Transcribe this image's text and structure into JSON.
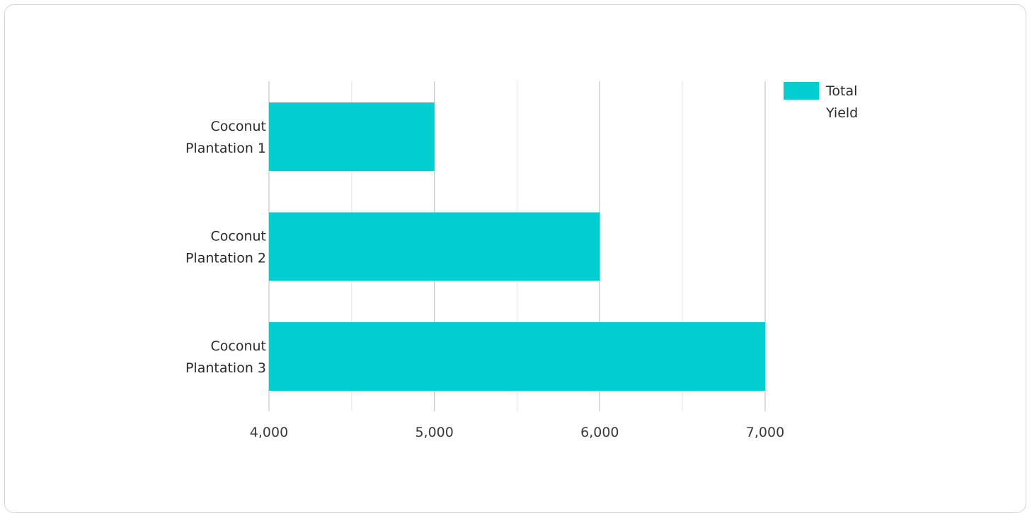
{
  "chart_data": {
    "type": "bar",
    "orientation": "horizontal",
    "categories": [
      "Coconut Plantation 1",
      "Coconut Plantation 2",
      "Coconut Plantation 3"
    ],
    "category_lines": [
      [
        "Coconut",
        "Plantation 1"
      ],
      [
        "Coconut",
        "Plantation 2"
      ],
      [
        "Coconut",
        "Plantation 3"
      ]
    ],
    "series": [
      {
        "name": "Total Yield",
        "legend_lines": [
          "Total",
          "Yield"
        ],
        "color": "#00CED1",
        "values": [
          5000,
          6000,
          7000
        ]
      }
    ],
    "xlim": [
      4000,
      7000
    ],
    "x_ticks": [
      4000,
      5000,
      6000,
      7000
    ],
    "x_tick_labels": [
      "4,000",
      "5,000",
      "6,000",
      "7,000"
    ],
    "minor_grid": true,
    "grid": true,
    "legend_position": "top-right",
    "title": "",
    "xlabel": "",
    "ylabel": ""
  }
}
